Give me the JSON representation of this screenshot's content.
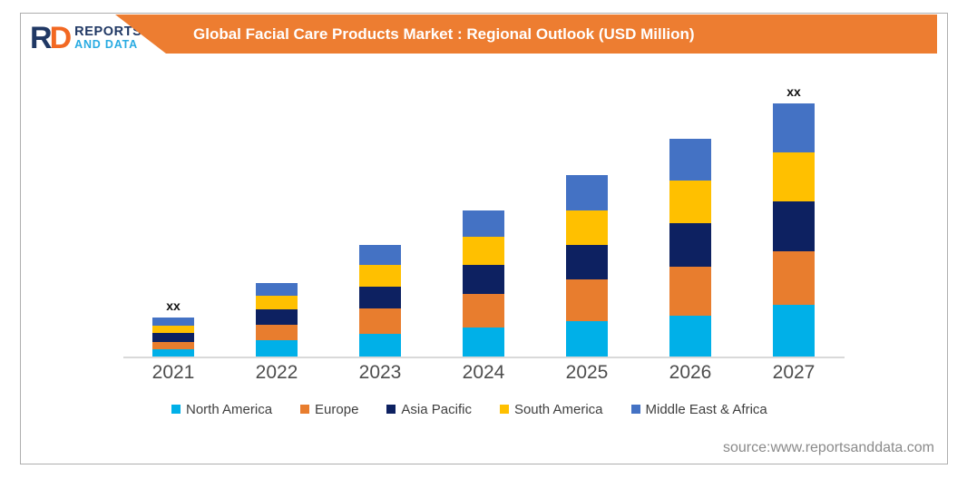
{
  "logo": {
    "mark_r": "R",
    "mark_d": "D",
    "line1": "REPORTS",
    "line2": "AND DATA"
  },
  "header": {
    "title": "Global Facial Care Products Market : Regional Outlook (USD Million)"
  },
  "footer": {
    "source": "source:www.reportsanddata.com"
  },
  "chart_data": {
    "type": "bar",
    "stacked": true,
    "title": "Global Facial Care Products Market : Regional Outlook (USD Million)",
    "unit": "USD Million — numeric values are masked in the figure as 'xx'; series values below are relative bar-segment heights read from pixels",
    "categories": [
      "2021",
      "2022",
      "2023",
      "2024",
      "2025",
      "2026",
      "2027"
    ],
    "series": [
      {
        "name": "North America",
        "color": "#00B0E8",
        "values": [
          8,
          18,
          25,
          32,
          39,
          45,
          57
        ]
      },
      {
        "name": "Europe",
        "color": "#E87D2E",
        "values": [
          8,
          17,
          28,
          37,
          46,
          54,
          59
        ]
      },
      {
        "name": "Asia Pacific",
        "color": "#0D2161",
        "values": [
          10,
          17,
          24,
          32,
          38,
          48,
          55
        ]
      },
      {
        "name": "South America",
        "color": "#FFC000",
        "values": [
          8,
          15,
          24,
          31,
          38,
          47,
          54
        ]
      },
      {
        "name": "Middle East & Africa",
        "color": "#4472C4",
        "values": [
          9,
          14,
          22,
          29,
          39,
          46,
          54
        ]
      }
    ],
    "totals_relative": [
      43,
      81,
      123,
      161,
      200,
      240,
      279
    ],
    "bar_value_labels": [
      {
        "category": "2021",
        "label": "xx"
      },
      {
        "category": "2027",
        "label": "xx"
      }
    ],
    "legend_position": "bottom",
    "y_axis": "hidden",
    "gridlines": false,
    "accent_colors": {
      "banner_orange": "#ED7D31",
      "axis_line": "#D9D9D9"
    }
  }
}
